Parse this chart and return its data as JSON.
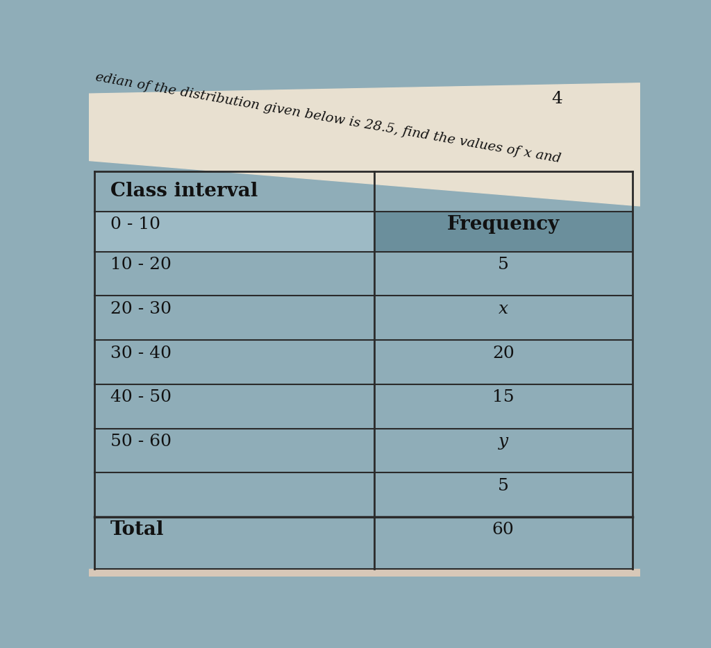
{
  "title_line1": "edian of the distribution given below is 28.5, find the values of x and",
  "page_number": "4",
  "col1_header": "Class interval",
  "col2_header": "Frequency",
  "rows": [
    [
      "0 - 10",
      ""
    ],
    [
      "10 - 20",
      "5"
    ],
    [
      "20 - 30",
      "x"
    ],
    [
      "30 - 40",
      "20"
    ],
    [
      "40 - 50",
      "15"
    ],
    [
      "50 - 60",
      "y"
    ],
    [
      "",
      "5"
    ],
    [
      "Total",
      "60"
    ]
  ],
  "bg_table": "#8fadb8",
  "bg_freq_header_row": "#7a9daa",
  "bg_top_area": "#9dbac5",
  "text_color": "#111111",
  "line_color": "#2a2a2a",
  "white_band_color": "#e8e0d0",
  "bottom_strip": "#d8c8b8",
  "fig_bg": "#8fadb8"
}
